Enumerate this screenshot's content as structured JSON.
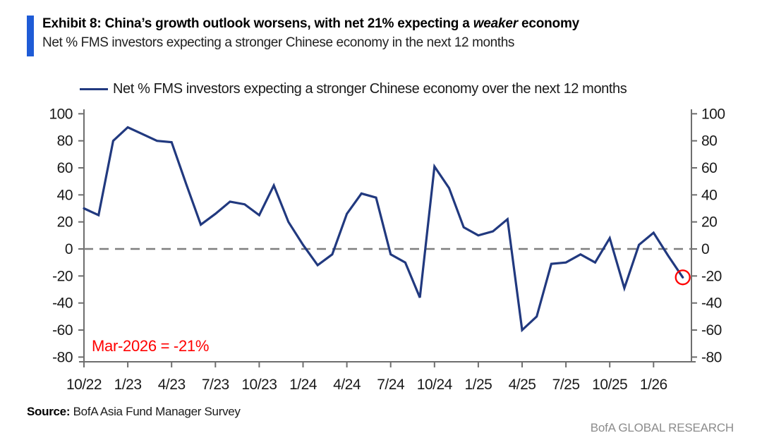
{
  "header": {
    "title_pre": "Exhibit 8: China’s growth outlook worsens, with net 21% expecting a ",
    "title_emphasis": "weaker",
    "title_post": " economy",
    "subtitle": "Net % FMS investors expecting a stronger Chinese economy in the next 12 months",
    "accent_color": "#1E5BD6"
  },
  "legend": {
    "label": "Net % FMS investors expecting a stronger Chinese economy over the next 12 months",
    "line_color": "#21397F"
  },
  "chart_data": {
    "type": "line",
    "title": "Net % FMS investors expecting a stronger Chinese economy over the next 12 months",
    "x": [
      "10/22",
      "11/22",
      "12/22",
      "1/23",
      "2/23",
      "3/23",
      "4/23",
      "5/23",
      "6/23",
      "7/23",
      "8/23",
      "9/23",
      "10/23",
      "11/23",
      "12/23",
      "1/24",
      "2/24",
      "3/24",
      "4/24",
      "5/24",
      "6/24",
      "7/24",
      "8/24",
      "9/24",
      "10/24",
      "11/24",
      "12/24",
      "1/25",
      "2/25",
      "3/25",
      "4/25",
      "5/25",
      "6/25",
      "7/25",
      "8/25",
      "9/25",
      "10/25",
      "11/25",
      "12/25",
      "1/26",
      "2/26",
      "3/26"
    ],
    "series": [
      {
        "name": "Net % FMS investors expecting a stronger Chinese economy over the next 12 months",
        "color": "#21397F",
        "values": [
          30,
          25,
          80,
          90,
          85,
          80,
          79,
          48,
          18,
          26,
          35,
          33,
          25,
          47,
          20,
          3,
          -12,
          -4,
          26,
          41,
          38,
          -4,
          -10,
          -36,
          61,
          45,
          16,
          10,
          13,
          22,
          -60,
          -50,
          -11,
          -10,
          -4,
          -10,
          8,
          -29,
          3,
          12,
          -5,
          -21
        ]
      }
    ],
    "x_tick_labels": [
      "10/22",
      "1/23",
      "4/23",
      "7/23",
      "10/23",
      "1/24",
      "4/24",
      "7/24",
      "10/24",
      "1/25",
      "4/25",
      "7/25",
      "10/25",
      "1/26"
    ],
    "y_ticks": [
      100,
      80,
      60,
      40,
      20,
      0,
      -20,
      -40,
      -60,
      -80
    ],
    "ylim": [
      -80,
      100
    ],
    "xlabel": "",
    "ylabel": "",
    "grid": false,
    "legend_position": "top",
    "zero_line": {
      "style": "dashed",
      "color": "#7F7F7F"
    },
    "annotation": {
      "text": "Mar-2026 = -21%",
      "color": "#FF0000"
    },
    "last_point_highlight": {
      "shape": "circle",
      "color": "#FF0000"
    }
  },
  "footer": {
    "source_label": "Source:",
    "source_text": " BofA Asia Fund Manager Survey",
    "brand": "BofA GLOBAL RESEARCH"
  }
}
